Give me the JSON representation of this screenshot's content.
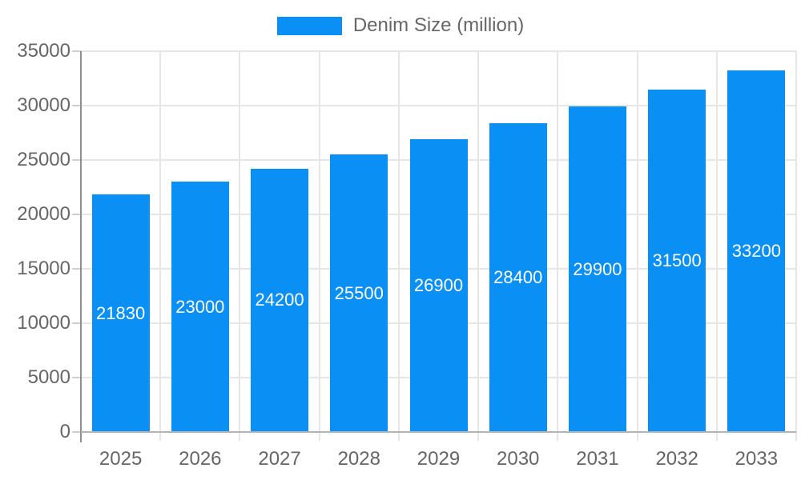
{
  "legend": {
    "label": "Denim Size (million)"
  },
  "colors": {
    "bar": "#0A8FF5",
    "grid": "#E6E6E6",
    "y_axis_line": "#8F8F8F",
    "x_axis_line": "#B3B3B3",
    "tick": "#CFCFCF",
    "axis_label_text": "#666666",
    "bar_label_text": "#FFFFFF",
    "background": "#FFFFFF"
  },
  "chart_data": {
    "type": "bar",
    "title": "Denim Size (million)",
    "series_name": "Denim Size (million)",
    "categories": [
      "2025",
      "2026",
      "2027",
      "2028",
      "2029",
      "2030",
      "2031",
      "2032",
      "2033"
    ],
    "values": [
      21830,
      23000,
      24200,
      25500,
      26900,
      28400,
      29900,
      31500,
      33200
    ],
    "xlabel": "",
    "ylabel": "",
    "ylim": [
      0,
      35000
    ],
    "y_ticks": [
      0,
      5000,
      10000,
      15000,
      20000,
      25000,
      30000,
      35000
    ],
    "grid": "both",
    "legend_position": "top",
    "value_labels": "inside-center-white"
  }
}
